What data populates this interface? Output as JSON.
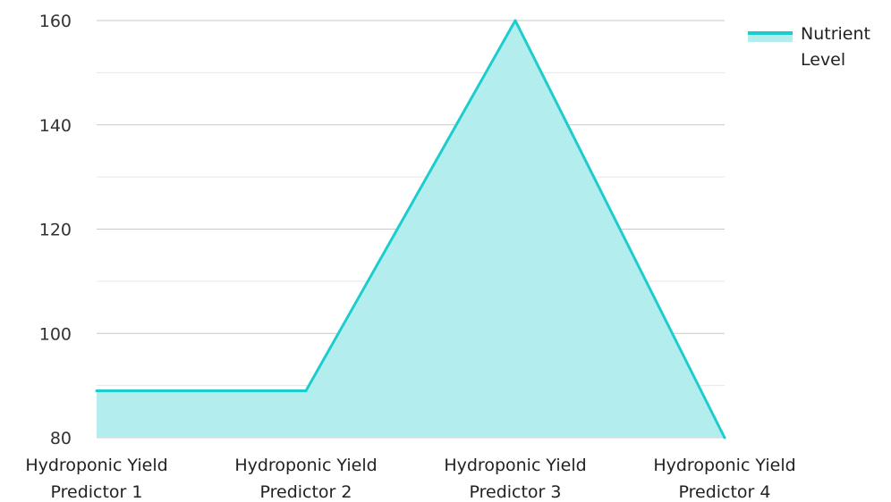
{
  "chart_data": {
    "type": "area",
    "categories": [
      "Hydroponic Yield Predictor 1",
      "Hydroponic Yield Predictor 2",
      "Hydroponic Yield Predictor 3",
      "Hydroponic Yield Predictor 4"
    ],
    "category_lines": [
      [
        "Hydroponic Yield",
        "Predictor 1"
      ],
      [
        "Hydroponic Yield",
        "Predictor 2"
      ],
      [
        "Hydroponic Yield",
        "Predictor 3"
      ],
      [
        "Hydroponic Yield",
        "Predictor 4"
      ]
    ],
    "series": [
      {
        "name": "Nutrient Level",
        "legend_lines": [
          "Nutrient",
          "Level"
        ],
        "values": [
          89,
          89,
          160,
          80
        ]
      }
    ],
    "ylim": [
      80,
      160
    ],
    "yticks": [
      80,
      100,
      120,
      140,
      160
    ],
    "minor_grid_step": 10,
    "grid": true,
    "legend_position": "top-right",
    "colors": {
      "line": "#1dcdcd",
      "fill": "#b3eded",
      "grid_major": "#c8c8c8",
      "grid_minor": "#e6e6e6"
    }
  }
}
